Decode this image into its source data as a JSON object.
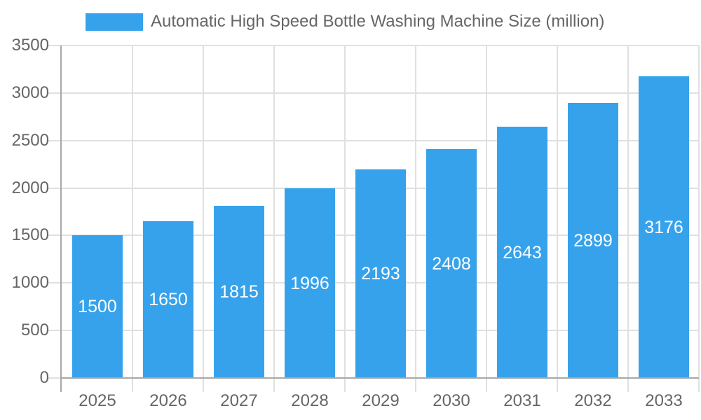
{
  "legend": {
    "label": "Automatic High Speed Bottle Washing Machine Size (million)"
  },
  "colors": {
    "bar": "#36A2EB",
    "tick_label": "#666666",
    "value_label": "#FFFFFF",
    "grid_line": "#E0E0E0",
    "axis_line": "#A8A8A8",
    "background": "#FFFFFF"
  },
  "chart_data": {
    "type": "bar",
    "title": "Automatic High Speed Bottle Washing Machine Size (million)",
    "categories": [
      "2025",
      "2026",
      "2027",
      "2028",
      "2029",
      "2030",
      "2031",
      "2032",
      "2033"
    ],
    "series": [
      {
        "name": "Automatic High Speed Bottle Washing Machine Size (million)",
        "values": [
          1500,
          1650,
          1815,
          1996,
          2193,
          2408,
          2643,
          2899,
          3176
        ]
      }
    ],
    "xlabel": "",
    "ylabel": "",
    "ylim": [
      0,
      3500
    ],
    "yticks": [
      0,
      500,
      1000,
      1500,
      2000,
      2500,
      3000,
      3500
    ],
    "grid": "both",
    "legend_position": "top",
    "value_labels_shown_inside_bars": true
  }
}
